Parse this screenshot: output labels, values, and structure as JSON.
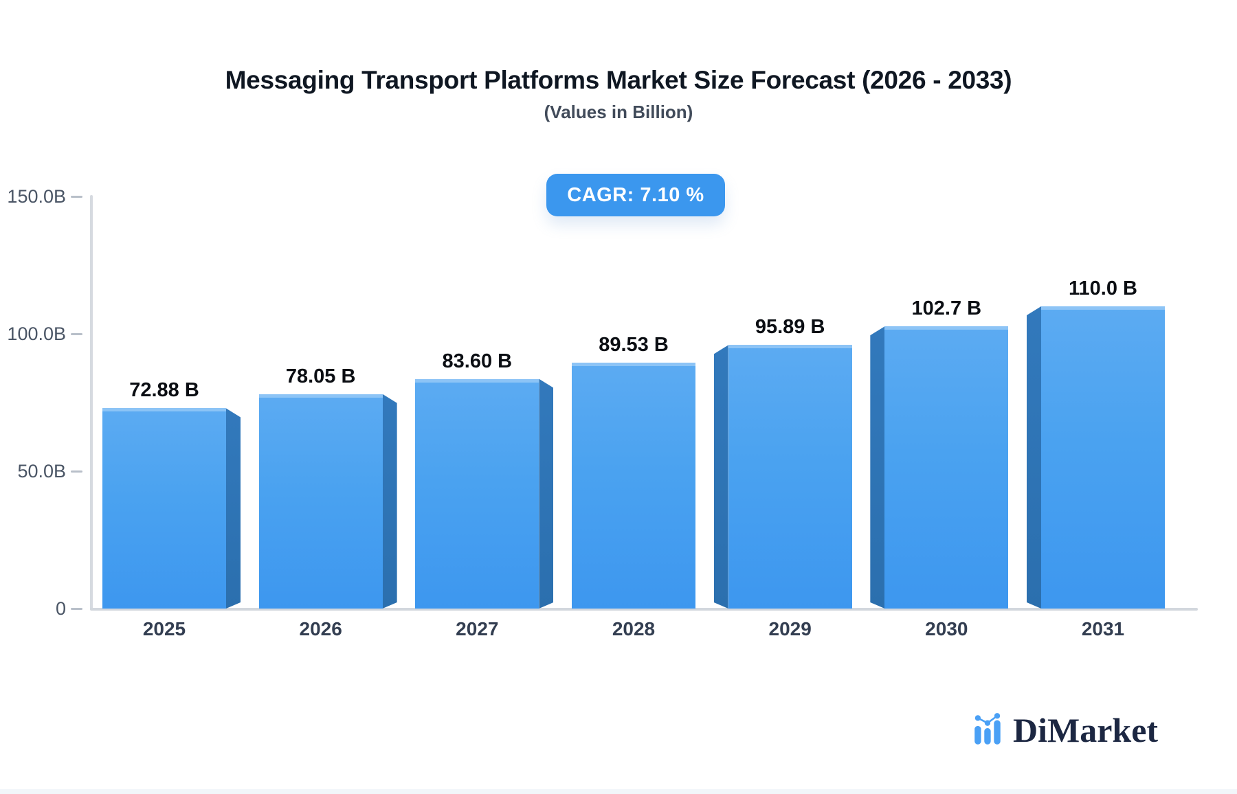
{
  "chart_data": {
    "type": "bar",
    "title": "Messaging Transport Platforms Market Size Forecast (2026 - 2033)",
    "subtitle": "(Values in Billion)",
    "cagr_label": "CAGR: 7.10 %",
    "categories": [
      "2025",
      "2026",
      "2027",
      "2028",
      "2029",
      "2030",
      "2031"
    ],
    "values": [
      72.88,
      78.05,
      83.6,
      89.53,
      95.89,
      102.7,
      110.0
    ],
    "value_labels": [
      "72.88 B",
      "78.05 B",
      "83.60 B",
      "89.53 B",
      "95.89 B",
      "102.7 B",
      "110.0 B"
    ],
    "xlabel": "",
    "ylabel": "",
    "ylim": [
      0,
      150
    ],
    "y_ticks": [
      {
        "label": "150.0B",
        "value": 150
      },
      {
        "label": "100.0B",
        "value": 100
      },
      {
        "label": "50.0B",
        "value": 50
      },
      {
        "label": "0",
        "value": 0
      }
    ],
    "grid": "off",
    "legend": "none",
    "style": {
      "bar_color_top": "#5cabf2",
      "bar_color_bottom": "#3d97ef",
      "bar_side_color": "#2e75b6",
      "badge_color": "#3b97ee",
      "axis_color": "#d3d8de",
      "title_color": "#0f1722",
      "label_color": "#0b0e13"
    }
  },
  "branding": {
    "name": "DiMarket",
    "icon": "bar-chart-logo-icon",
    "icon_color": "#4aa0f5",
    "text_color": "#1c2742"
  }
}
